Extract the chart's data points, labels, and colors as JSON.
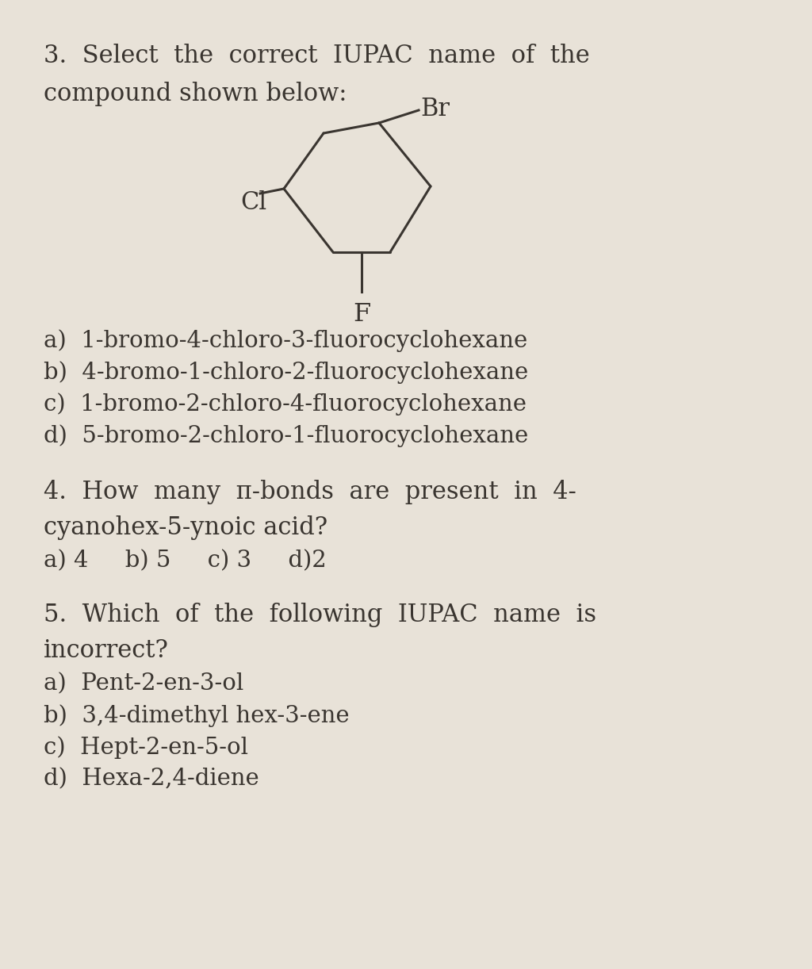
{
  "bg_color": "#e8e2d8",
  "text_color": "#3a3530",
  "fig_width": 10.24,
  "fig_height": 12.22,
  "q3_line1": "3.  Select  the  correct  IUPAC  name  of  the",
  "q3_line2": "compound shown below:",
  "q3_options": [
    "a)  1-bromo-4-chloro-3-fluorocyclohexane",
    "b)  4-bromo-1-chloro-2-fluorocyclohexane",
    "c)  1-bromo-2-chloro-4-fluorocyclohexane",
    "d)  5-bromo-2-chloro-1-fluorocyclohexane"
  ],
  "q4_line1": "4.  How  many  π-bonds  are  present  in  4-",
  "q4_line2": "cyanohex-5-ynoic acid?",
  "q4_options": "a) 4     b) 5     c) 3     d)2",
  "q5_line1": "5.  Which  of  the  following  IUPAC  name  is",
  "q5_line2": "incorrect?",
  "q5_options": [
    "a)  Pent-2-en-3-ol",
    "b)  3,4-dimethyl hex-3-ene",
    "c)  Hept-2-en-5-ol",
    "d)  Hexa-2,4-diene"
  ],
  "font_size_main": 22,
  "font_size_options": 21,
  "font_family": "DejaVu Serif",
  "mol_lw": 2.2,
  "mol_color": "#3a3530"
}
